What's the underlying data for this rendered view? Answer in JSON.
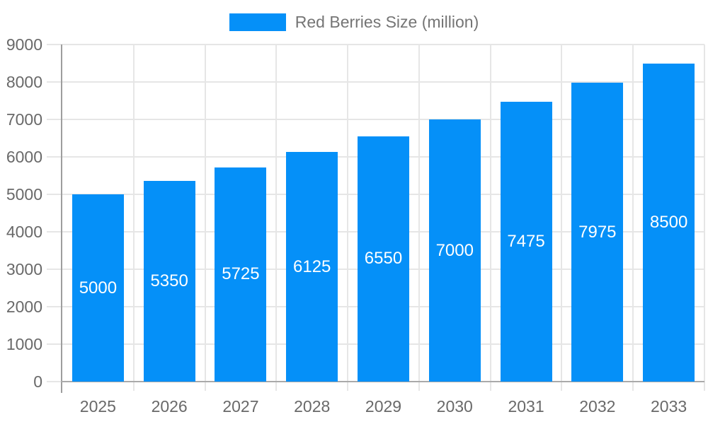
{
  "chart": {
    "colors": {
      "bar": "#0590f8",
      "gridline": "#e6e6e6",
      "axis_line": "#9e9e9e",
      "axis_text": "#696969",
      "legend_text": "#757575",
      "bar_label_text": "#ffffff",
      "background": "#ffffff"
    }
  },
  "chart_data": {
    "type": "bar",
    "title": "",
    "legend": [
      "Red Berries Size (million)"
    ],
    "legend_position": "top",
    "categories": [
      "2025",
      "2026",
      "2027",
      "2028",
      "2029",
      "2030",
      "2031",
      "2032",
      "2033"
    ],
    "series": [
      {
        "name": "Red Berries Size (million)",
        "values": [
          5000,
          5350,
          5725,
          6125,
          6550,
          7000,
          7475,
          7975,
          8500
        ]
      }
    ],
    "bar_labels": [
      "5000",
      "5350",
      "5725",
      "6125",
      "6550",
      "7000",
      "7475",
      "7975",
      "8500"
    ],
    "bar_labels_inside": true,
    "xlabel": "",
    "ylabel": "",
    "ylim": [
      0,
      9000
    ],
    "ytick_step": 1000,
    "ytick_labels": [
      "0",
      "1000",
      "2000",
      "3000",
      "4000",
      "5000",
      "6000",
      "7000",
      "8000",
      "9000"
    ],
    "grid": true
  }
}
